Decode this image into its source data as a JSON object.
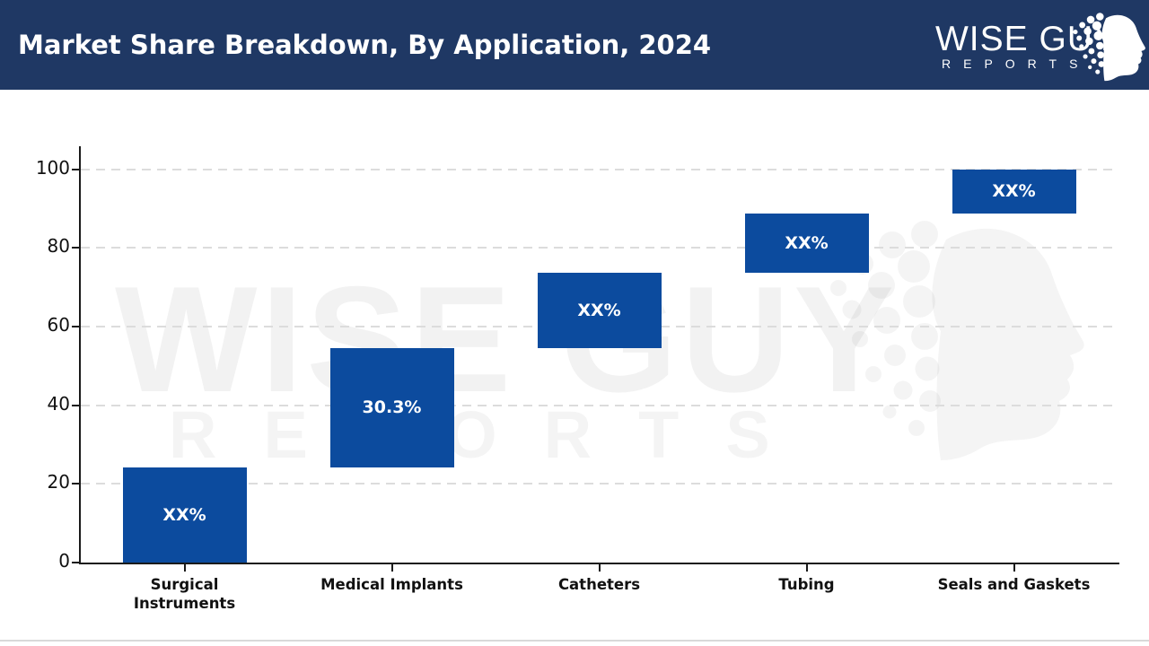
{
  "header": {
    "title": "Market Share Breakdown, By Application, 2024",
    "logo": {
      "name": "WISE GUY",
      "sub": "REPORTS"
    }
  },
  "watermark": {
    "name": "WISE GUY",
    "sub": "REPORTS"
  },
  "colors": {
    "header_bg": "#1f3864",
    "bar": "#0c4b9e",
    "grid": "#dcdcdc",
    "axis": "#1a1a1a",
    "bar_label_text": "#ffffff",
    "tick_label_text": "#111111"
  },
  "chart_data": {
    "type": "bar",
    "variant": "waterfall",
    "title": "Market Share Breakdown, By Application, 2024",
    "categories": [
      "Surgical Instruments",
      "Medical Implants",
      "Catheters",
      "Tubing",
      "Seals and Gaskets"
    ],
    "category_label_lines": [
      [
        "Surgical",
        "Instruments"
      ],
      [
        "Medical Implants"
      ],
      [
        "Catheters"
      ],
      [
        "Tubing"
      ],
      [
        "Seals and Gaskets"
      ]
    ],
    "segments": [
      {
        "category": "Surgical Instruments",
        "start": 0,
        "end": 24.2,
        "label": "XX%"
      },
      {
        "category": "Medical Implants",
        "start": 24.2,
        "end": 54.5,
        "label": "30.3%"
      },
      {
        "category": "Catheters",
        "start": 54.5,
        "end": 73.6,
        "label": "XX%"
      },
      {
        "category": "Tubing",
        "start": 73.6,
        "end": 88.6,
        "label": "XX%"
      },
      {
        "category": "Seals and Gaskets",
        "start": 88.6,
        "end": 100,
        "label": "XX%"
      }
    ],
    "ylim": [
      0,
      100
    ],
    "yticks": [
      0,
      20,
      40,
      60,
      80,
      100
    ],
    "xlabel": "",
    "ylabel": "",
    "grid": "horizontal-dashed",
    "legend": "none"
  }
}
